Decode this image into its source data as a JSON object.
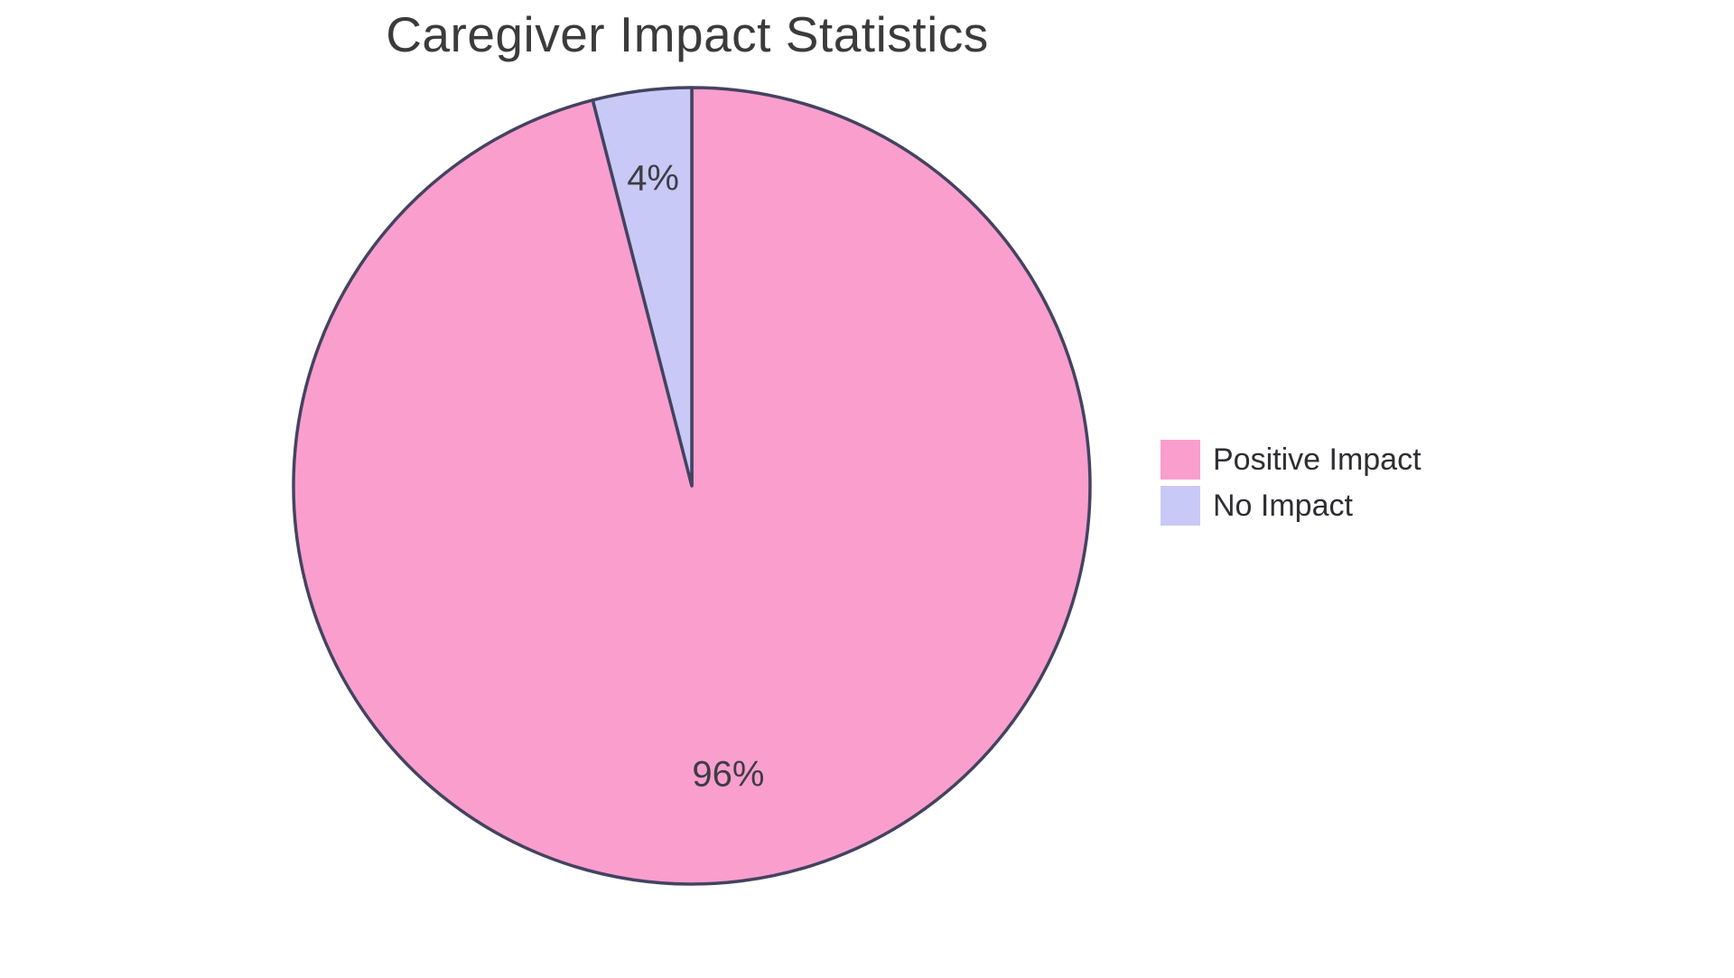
{
  "chart_data": {
    "type": "pie",
    "title": "Caregiver Impact Statistics",
    "slices": [
      {
        "label": "Positive Impact",
        "value": 96,
        "display_label": "96%",
        "color": "#FA9ECE"
      },
      {
        "label": "No Impact",
        "value": 4,
        "display_label": "4%",
        "color": "#C9C9F8"
      }
    ],
    "start_angle": "12-oclock",
    "direction": "clockwise",
    "slice_border_color": "#434360",
    "label_position": "inside",
    "legend_position": "right-middle"
  },
  "colors": {
    "background": "#FFFFFF",
    "title_text": "#3B3B3B",
    "slice_label_text": "#3D3D44",
    "legend_text": "#2E2E33"
  }
}
